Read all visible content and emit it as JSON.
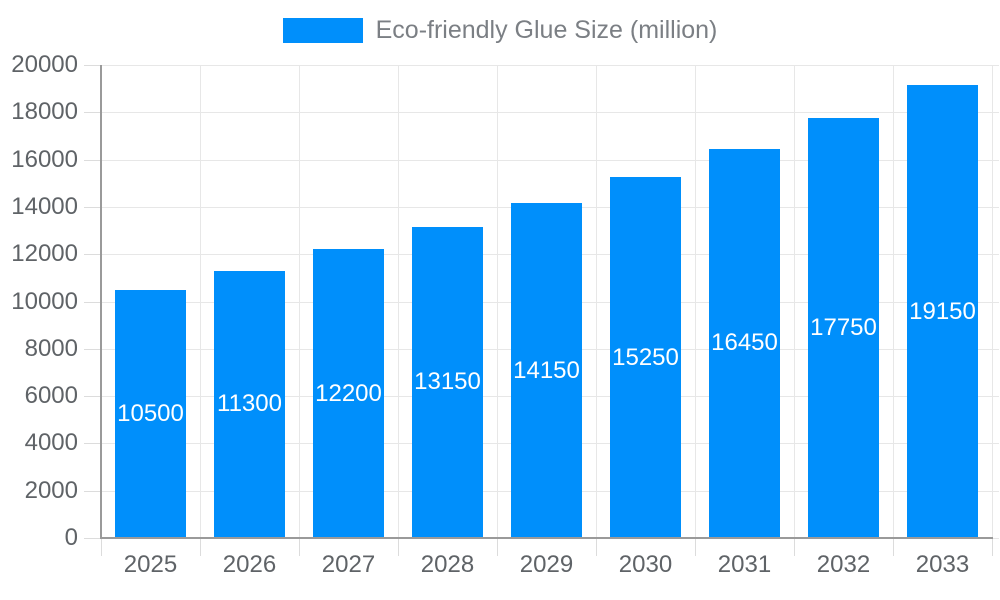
{
  "legend": {
    "label": "Eco-friendly Glue Size (million)"
  },
  "colors": {
    "bar": "#008FFB",
    "value_label": "#ffffff",
    "axis_label": "#5f6367",
    "legend_label": "#7b7f84",
    "gridline": "#e7e7e7",
    "tick": "#dcdcdc",
    "axis_line": "#9a9a9a"
  },
  "chart_data": {
    "type": "bar",
    "title": "",
    "xlabel": "",
    "ylabel": "",
    "legend_entries": [
      "Eco-friendly Glue Size (million)"
    ],
    "legend_position": "top",
    "categories": [
      "2025",
      "2026",
      "2027",
      "2028",
      "2029",
      "2030",
      "2031",
      "2032",
      "2033"
    ],
    "values": [
      10500,
      11300,
      12200,
      13150,
      14150,
      15250,
      16450,
      17750,
      19150
    ],
    "value_labels": [
      "10500",
      "11300",
      "12200",
      "13150",
      "14150",
      "15250",
      "16450",
      "17750",
      "19150"
    ],
    "ylim": [
      0,
      20000
    ],
    "ytick_step": 2000,
    "ytick_labels": [
      "0",
      "2000",
      "4000",
      "6000",
      "8000",
      "10000",
      "12000",
      "14000",
      "16000",
      "18000",
      "20000"
    ],
    "grid": true,
    "value_labels_position": "center-inside"
  }
}
